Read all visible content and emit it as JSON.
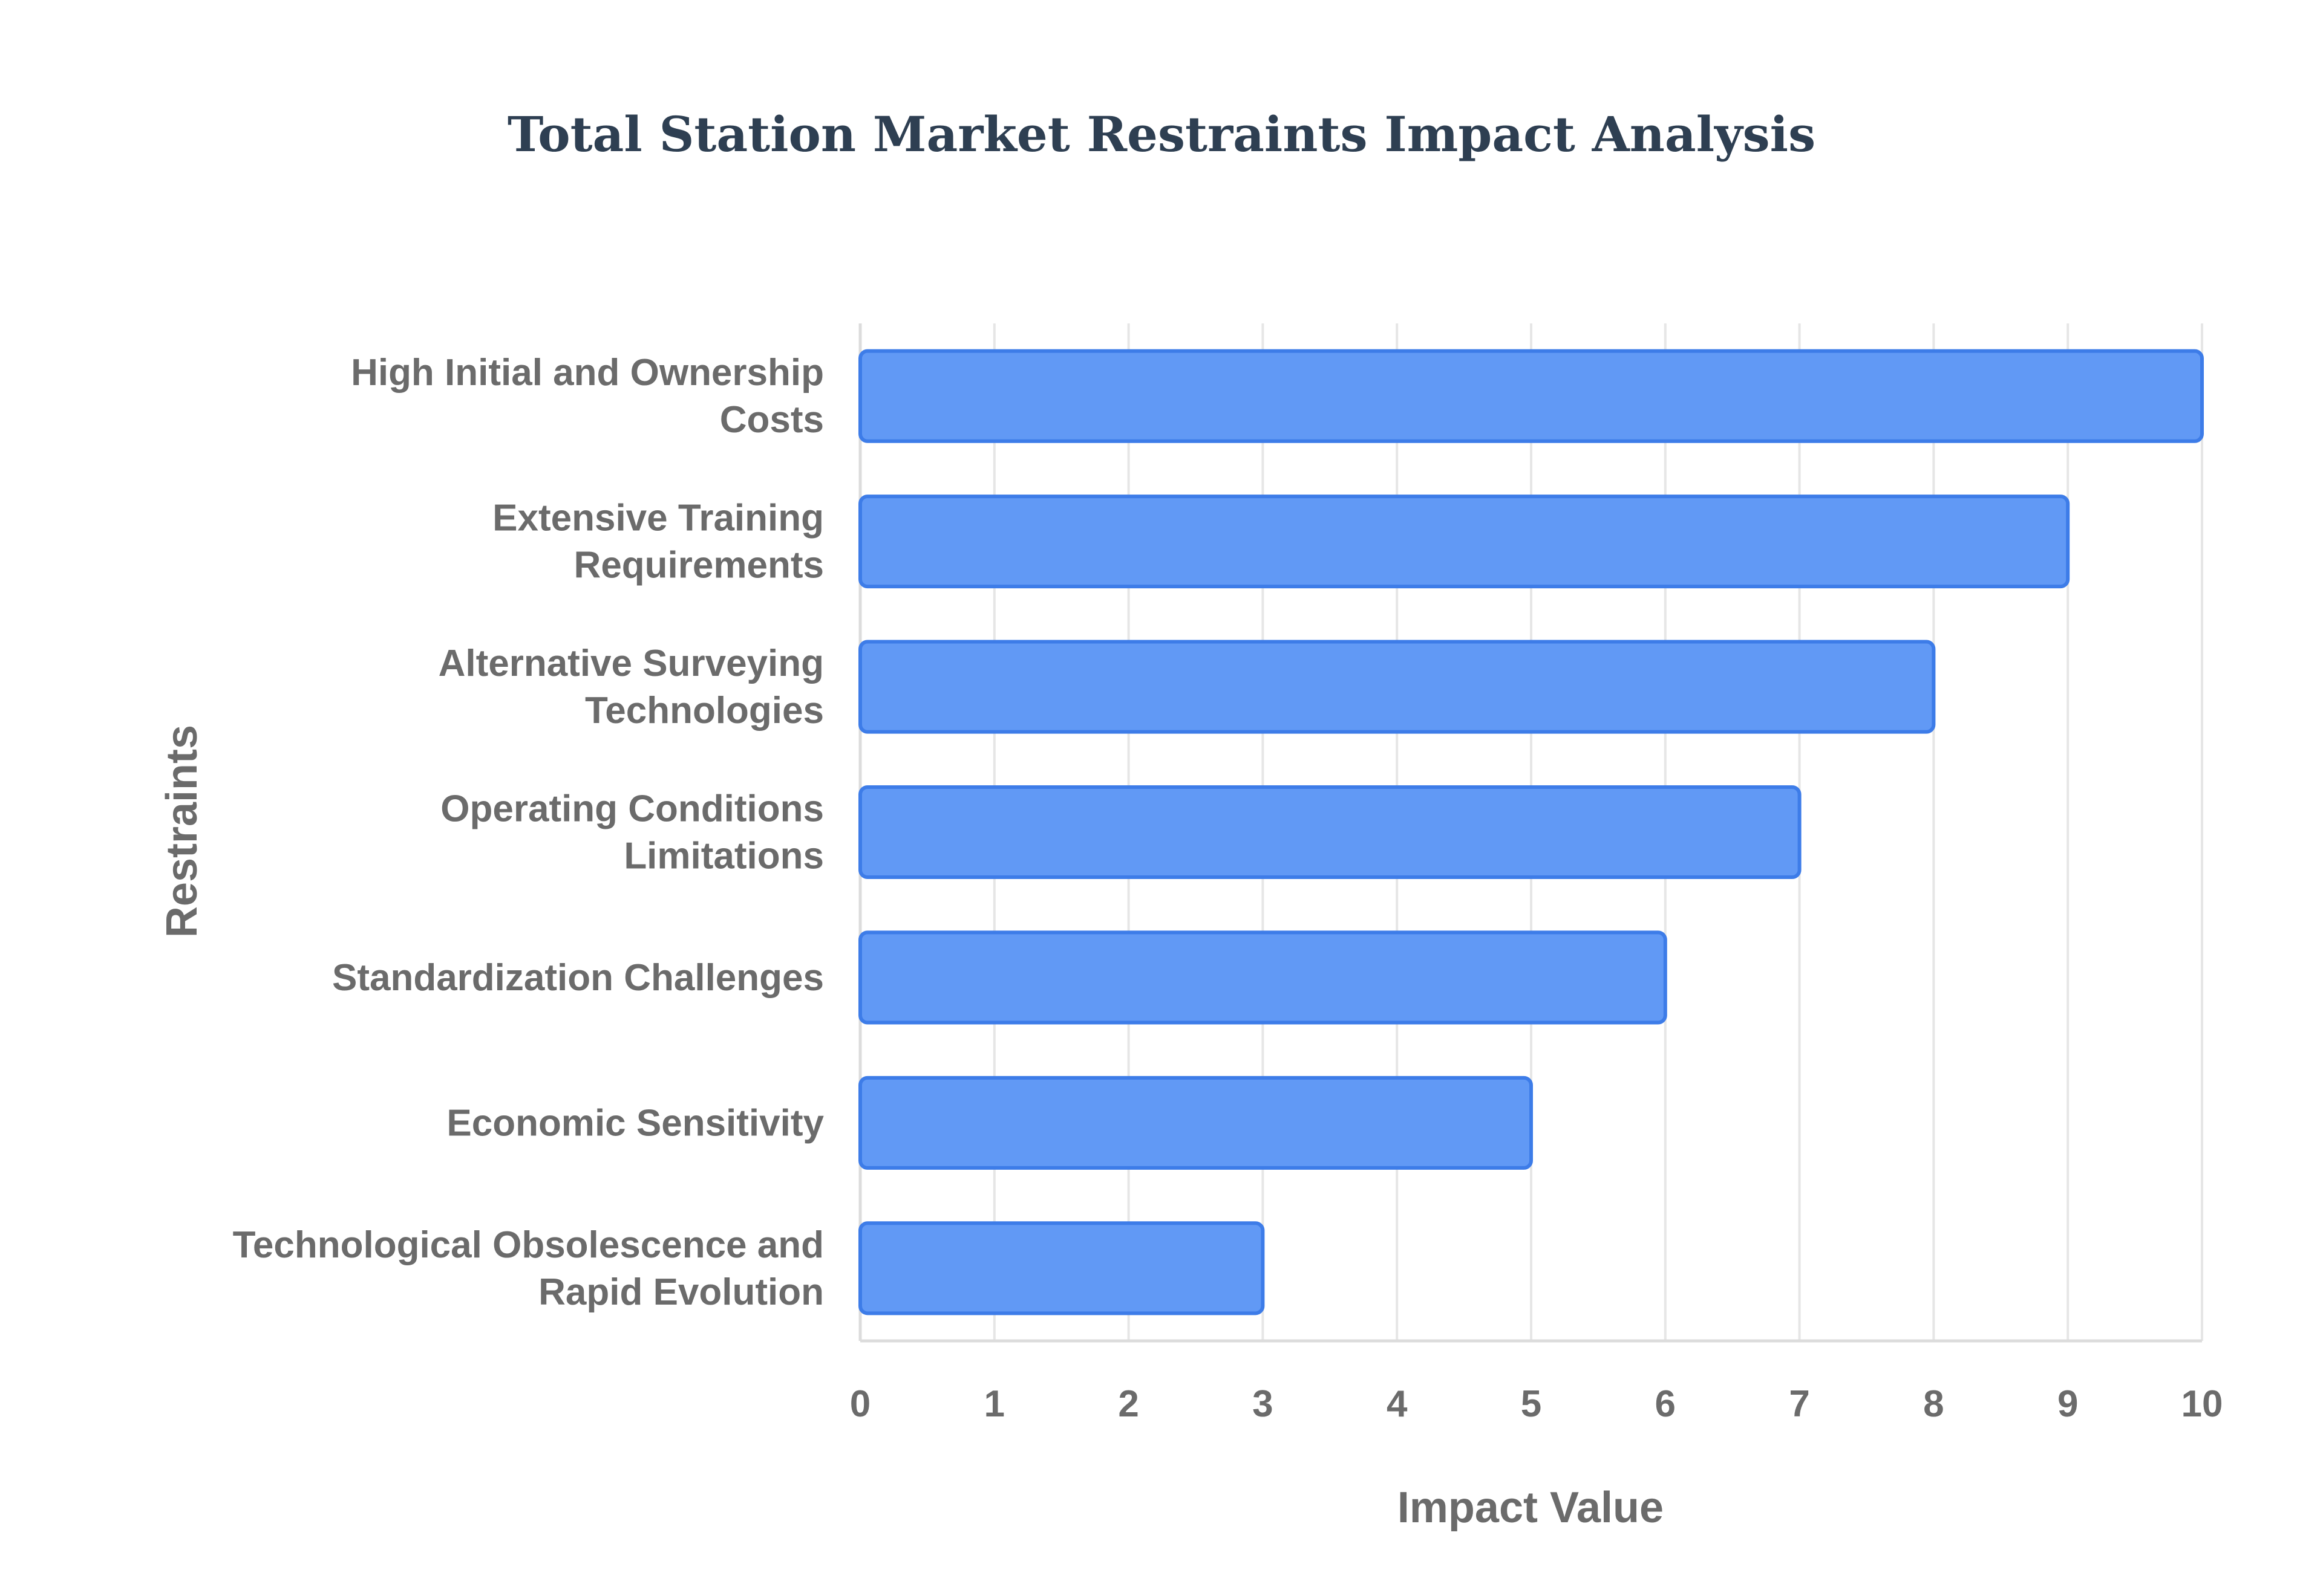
{
  "chart_data": {
    "type": "bar",
    "orientation": "horizontal",
    "title": "Total Station Market Restraints Impact Analysis",
    "xlabel": "Impact Value",
    "ylabel": "Restraints",
    "xlim": [
      0,
      10
    ],
    "x_ticks": [
      "0",
      "1",
      "2",
      "3",
      "4",
      "5",
      "6",
      "7",
      "8",
      "9",
      "10"
    ],
    "grid": true,
    "categories": [
      [
        "High Initial and Ownership",
        "Costs"
      ],
      [
        "Extensive Training",
        "Requirements"
      ],
      [
        "Alternative Surveying",
        "Technologies"
      ],
      [
        "Operating Conditions",
        "Limitations"
      ],
      [
        "Standardization Challenges"
      ],
      [
        "Economic Sensitivity"
      ],
      [
        "Technological Obsolescence and",
        "Rapid Evolution"
      ]
    ],
    "values": [
      10,
      9,
      8,
      7,
      6,
      5,
      3
    ],
    "colors": {
      "bar_fill": "#6199f5",
      "bar_stroke": "#3d7ce8",
      "grid": "#e6e6e6",
      "text": "#6b6b6b",
      "title": "#2e3f52"
    }
  }
}
